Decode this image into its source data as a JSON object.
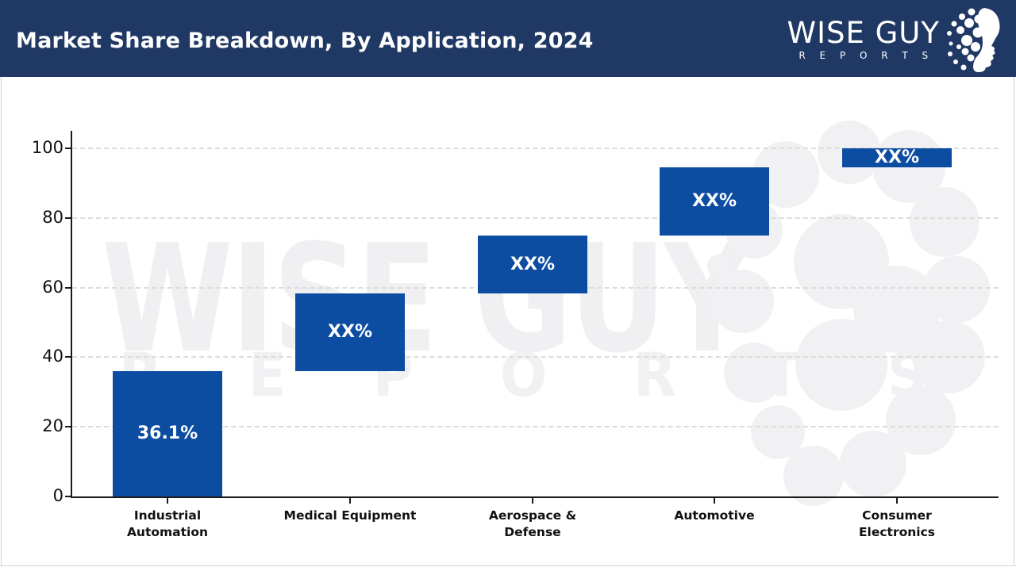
{
  "header": {
    "title": "Market Share Breakdown, By Application, 2024",
    "logo": {
      "name": "WISE GUY",
      "sub": "R E P O R T S"
    }
  },
  "watermark": {
    "big": "WISE GUY",
    "sub": "R E P O R T S"
  },
  "chart_data": {
    "type": "bar",
    "variant": "waterfall",
    "title": "Market Share Breakdown, By Application, 2024",
    "categories": [
      "Industrial\nAutomation",
      "Medical Equipment",
      "Aerospace &\nDefense",
      "Automotive",
      "Consumer\nElectronics"
    ],
    "bars": [
      {
        "category": "Industrial Automation",
        "start": 0,
        "end": 36.1,
        "label": "36.1%"
      },
      {
        "category": "Medical Equipment",
        "start": 36.1,
        "end": 58.3,
        "label": "XX%"
      },
      {
        "category": "Aerospace & Defense",
        "start": 58.3,
        "end": 74.9,
        "label": "XX%"
      },
      {
        "category": "Automotive",
        "start": 74.9,
        "end": 94.5,
        "label": "XX%"
      },
      {
        "category": "Consumer Electronics",
        "start": 94.5,
        "end": 100,
        "label": "XX%"
      }
    ],
    "yticks": [
      0,
      20,
      40,
      60,
      80,
      100
    ],
    "ylim": [
      0,
      105
    ],
    "xlabel": "",
    "ylabel": "",
    "grid": "horizontal-dashed",
    "legend": "none",
    "bar_color": "#0c4da2",
    "bar_label_color": "#ffffff",
    "axis_color": "#1a1a1a",
    "grid_color": "#dcdcdc"
  },
  "colors": {
    "header_bg": "#1f3864",
    "bar": "#0c4da2",
    "watermark": "#f0f0f3",
    "frame": "#d2d2d2"
  }
}
